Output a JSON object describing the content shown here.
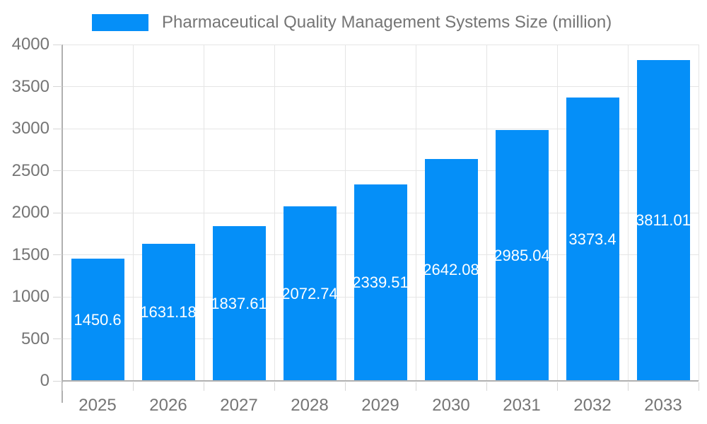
{
  "legend": {
    "swatch_color": "#058ff8",
    "label": "Pharmaceutical Quality Management Systems Size (million)"
  },
  "chart_data": {
    "type": "bar",
    "title": "Pharmaceutical Quality Management Systems Size (million)",
    "xlabel": "",
    "ylabel": "",
    "categories": [
      "2025",
      "2026",
      "2027",
      "2028",
      "2029",
      "2030",
      "2031",
      "2032",
      "2033"
    ],
    "values": [
      1450.6,
      1631.18,
      1837.61,
      2072.74,
      2339.51,
      2642.08,
      2985.04,
      3373.4,
      3811.01
    ],
    "bar_labels": [
      "1450.6",
      "1631.18",
      "1837.61",
      "2072.74",
      "2339.51",
      "2642.08",
      "2985.04",
      "3373.4",
      "3811.01"
    ],
    "ylim": [
      0,
      4000
    ],
    "yticks": [
      0,
      500,
      1000,
      1500,
      2000,
      2500,
      3000,
      3500,
      4000
    ],
    "grid": true,
    "legend_position": "top",
    "colors": {
      "bar": "#058ff8",
      "axis_text": "#757575",
      "bar_label_text": "#ffffff",
      "gridline": "#e5e5e5",
      "axis_line": "#b0b0b0"
    }
  }
}
